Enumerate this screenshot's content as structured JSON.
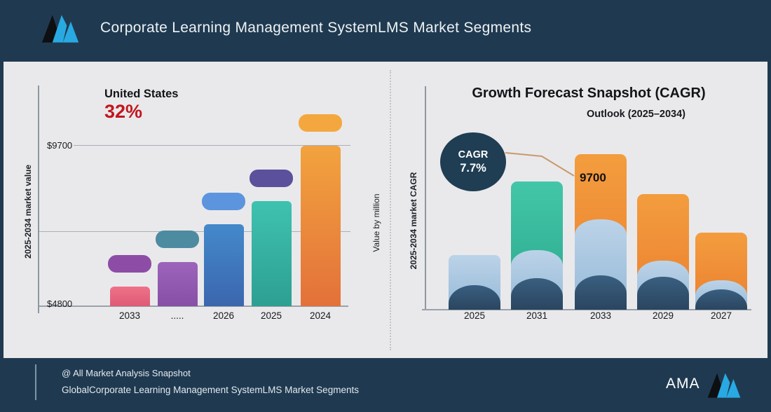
{
  "header": {
    "title": "Corporate Learning Management SystemLMS Market Segments",
    "logo": "ama-mountain-logo"
  },
  "footer": {
    "line1": "@ All Market Analysis Snapshot",
    "line2": "GlobalCorporate Learning Management SystemLMS Market Segments",
    "brand": "AMA",
    "logo": "ama-mountain-logo"
  },
  "colors": {
    "header_bg": "#1f3a50",
    "content_bg": "#e9e9eb",
    "accent_red": "#c1161f",
    "cagr_circle": "#1f3d53",
    "connector": "#c9996f",
    "grid": "#aab0b8"
  },
  "chart_data": [
    {
      "type": "bar",
      "panel": "left",
      "title": "United States",
      "annotation": "32%",
      "ylabel": "2025-2034 market value",
      "ylabel_secondary": "Value by million",
      "ytick_labels": [
        "$4800",
        "$9700"
      ],
      "ylim": [
        4800,
        10400
      ],
      "grid": true,
      "categories": [
        "2033",
        ".....",
        "2026",
        "2025",
        "2024"
      ],
      "values": [
        5400,
        6150,
        7300,
        8000,
        9700
      ],
      "bar_colors": [
        [
          "#ee7288",
          "#df5a76"
        ],
        [
          "#9c64ba",
          "#8750a6"
        ],
        [
          "#4489cb",
          "#3b66ae"
        ],
        [
          "#3fc2b0",
          "#2d9f92"
        ],
        [
          "#f2a33e",
          "#e3713a"
        ]
      ],
      "cap_colors": [
        "#8d4da6",
        "#4d8ba1",
        "#5c95de",
        "#5a509c",
        "#f4a73f"
      ]
    },
    {
      "type": "bar",
      "stacked": true,
      "panel": "right",
      "title": "Growth Forecast Snapshot (CAGR)",
      "subtitle": "Outlook (2025–2034)",
      "ylabel": "2025-2034 market CAGR",
      "cagr_label": "CAGR",
      "cagr_value": "7.7%",
      "categories": [
        "2025",
        "2031",
        "2033",
        "2029",
        "2027"
      ],
      "totals": [
        3400,
        8000,
        9700,
        7200,
        4800
      ],
      "series": [
        {
          "name": "base",
          "values": [
            1550,
            1950,
            2150,
            2050,
            1250
          ],
          "color": [
            "#3a5f80",
            "#2a4560"
          ]
        },
        {
          "name": "mid",
          "values": [
            1850,
            1750,
            3500,
            1000,
            600
          ],
          "color": [
            "#bcd3e8",
            "#95b9d8"
          ]
        },
        {
          "name": "top",
          "values": [
            0,
            4300,
            4050,
            4150,
            2950
          ],
          "colors": [
            [
              "#cadded",
              "#a9c6e0"
            ],
            [
              "#43c6a8",
              "#2aa78c"
            ],
            [
              "#f39d3e",
              "#eb7f30"
            ],
            [
              "#f39d3e",
              "#eb7f30"
            ],
            [
              "#f39d3e",
              "#eb7f30"
            ]
          ]
        }
      ],
      "data_label": {
        "category": "2033",
        "value": "9700"
      }
    }
  ]
}
